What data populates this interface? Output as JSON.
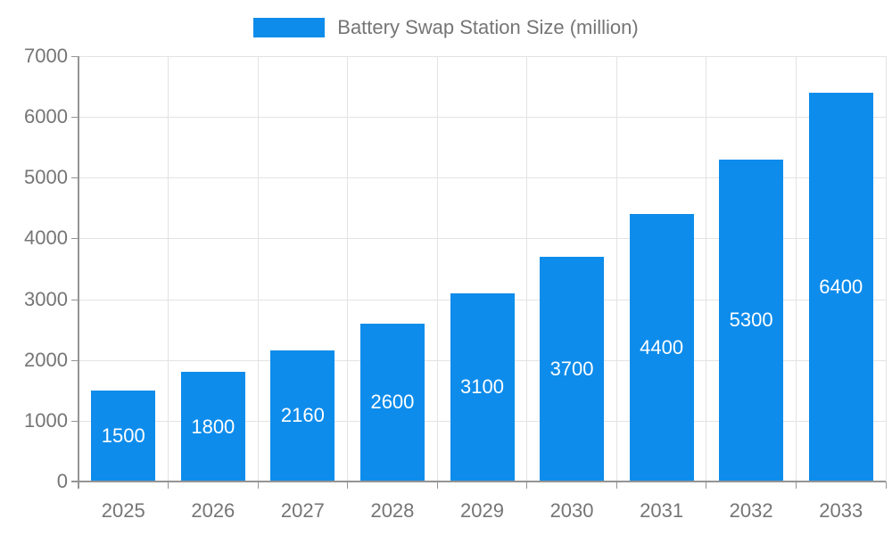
{
  "chart_data": {
    "type": "bar",
    "title": "Battery Swap Station Size (million)",
    "categories": [
      "2025",
      "2026",
      "2027",
      "2028",
      "2029",
      "2030",
      "2031",
      "2032",
      "2033"
    ],
    "values": [
      1500,
      1800,
      2160,
      2600,
      3100,
      3700,
      4400,
      5300,
      6400
    ],
    "series": [
      {
        "name": "Battery Swap Station Size (million)",
        "values": [
          1500,
          1800,
          2160,
          2600,
          3100,
          3700,
          4400,
          5300,
          6400
        ]
      }
    ],
    "xlabel": "",
    "ylabel": "",
    "ylim": [
      0,
      7000
    ],
    "ytick_step": 1000,
    "ytick_labels": [
      "0",
      "1000",
      "2000",
      "3000",
      "4000",
      "5000",
      "6000",
      "7000"
    ],
    "grid": true,
    "legend_position": "top-center",
    "value_labels_position": "inside-center",
    "colors": {
      "bar": "#0d8ceb",
      "bar_value_label": "#ffffff",
      "axis_text": "#757575",
      "axis_line": "#949494",
      "gridline": "#e3e3e3"
    }
  }
}
